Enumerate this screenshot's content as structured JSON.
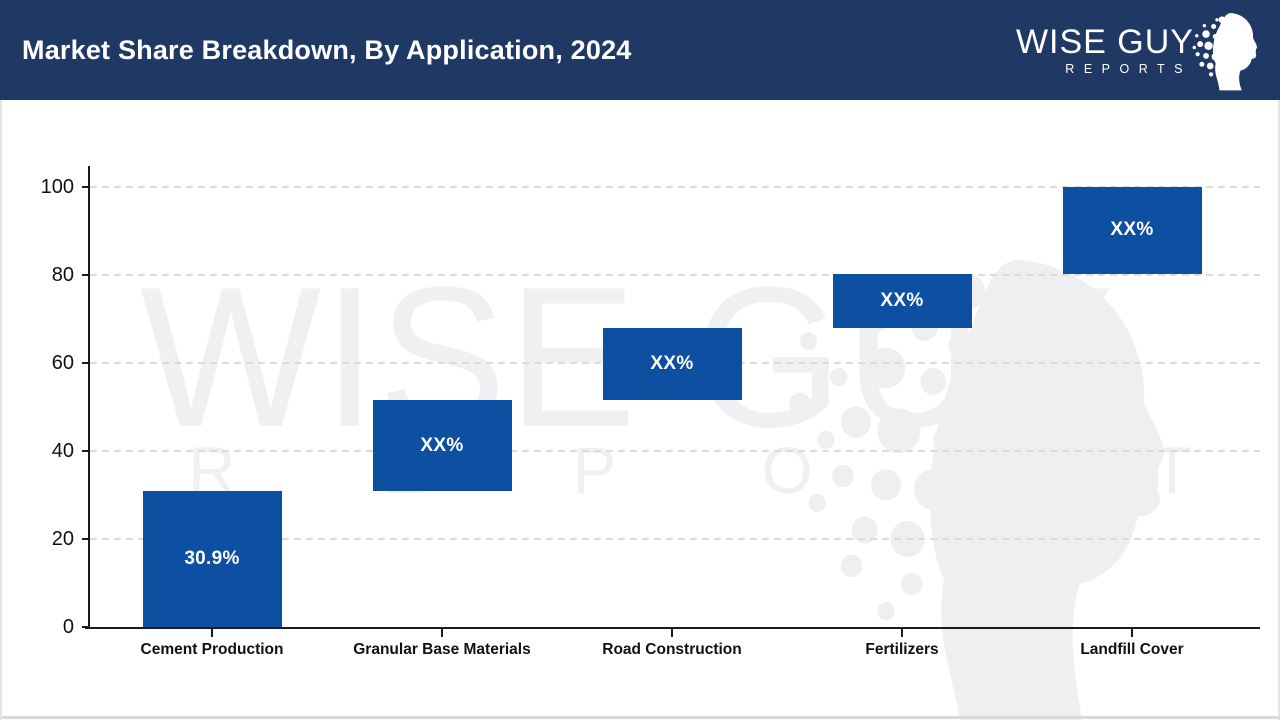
{
  "header": {
    "title": "Market Share Breakdown, By Application, 2024",
    "logo_line1": "WISE GUY",
    "logo_line2": "REPORTS"
  },
  "watermark": {
    "line1": "WISE GUY",
    "line2": "R E P O R T S"
  },
  "colors": {
    "header_bg": "#1f3864",
    "bar": "#0d4fa1",
    "bar_label": "#ffffff",
    "grid": "#dcdcdc",
    "axis": "#1a1a1a",
    "watermark": "#f0f0f3"
  },
  "chart_data": {
    "type": "bar",
    "variant": "waterfall-floating-bars",
    "title": "Market Share Breakdown, By Application, 2024",
    "xlabel": "",
    "ylabel": "",
    "ylim": [
      0,
      107
    ],
    "yticks": [
      0,
      20,
      40,
      60,
      80,
      100
    ],
    "grid": "horizontal-dashed",
    "legend": "none",
    "categories": [
      "Cement Production",
      "Granular Base Materials",
      "Road Construction",
      "Fertilizers",
      "Landfill Cover"
    ],
    "segments": [
      {
        "category": "Cement Production",
        "start": 0,
        "end": 30.9,
        "label": "30.9%"
      },
      {
        "category": "Granular Base Materials",
        "start": 30.9,
        "end": 51.5,
        "label": "XX%"
      },
      {
        "category": "Road Construction",
        "start": 51.5,
        "end": 68.0,
        "label": "XX%"
      },
      {
        "category": "Fertilizers",
        "start": 68.0,
        "end": 80.3,
        "label": "XX%"
      },
      {
        "category": "Landfill Cover",
        "start": 80.3,
        "end": 100.0,
        "label": "XX%"
      }
    ]
  }
}
